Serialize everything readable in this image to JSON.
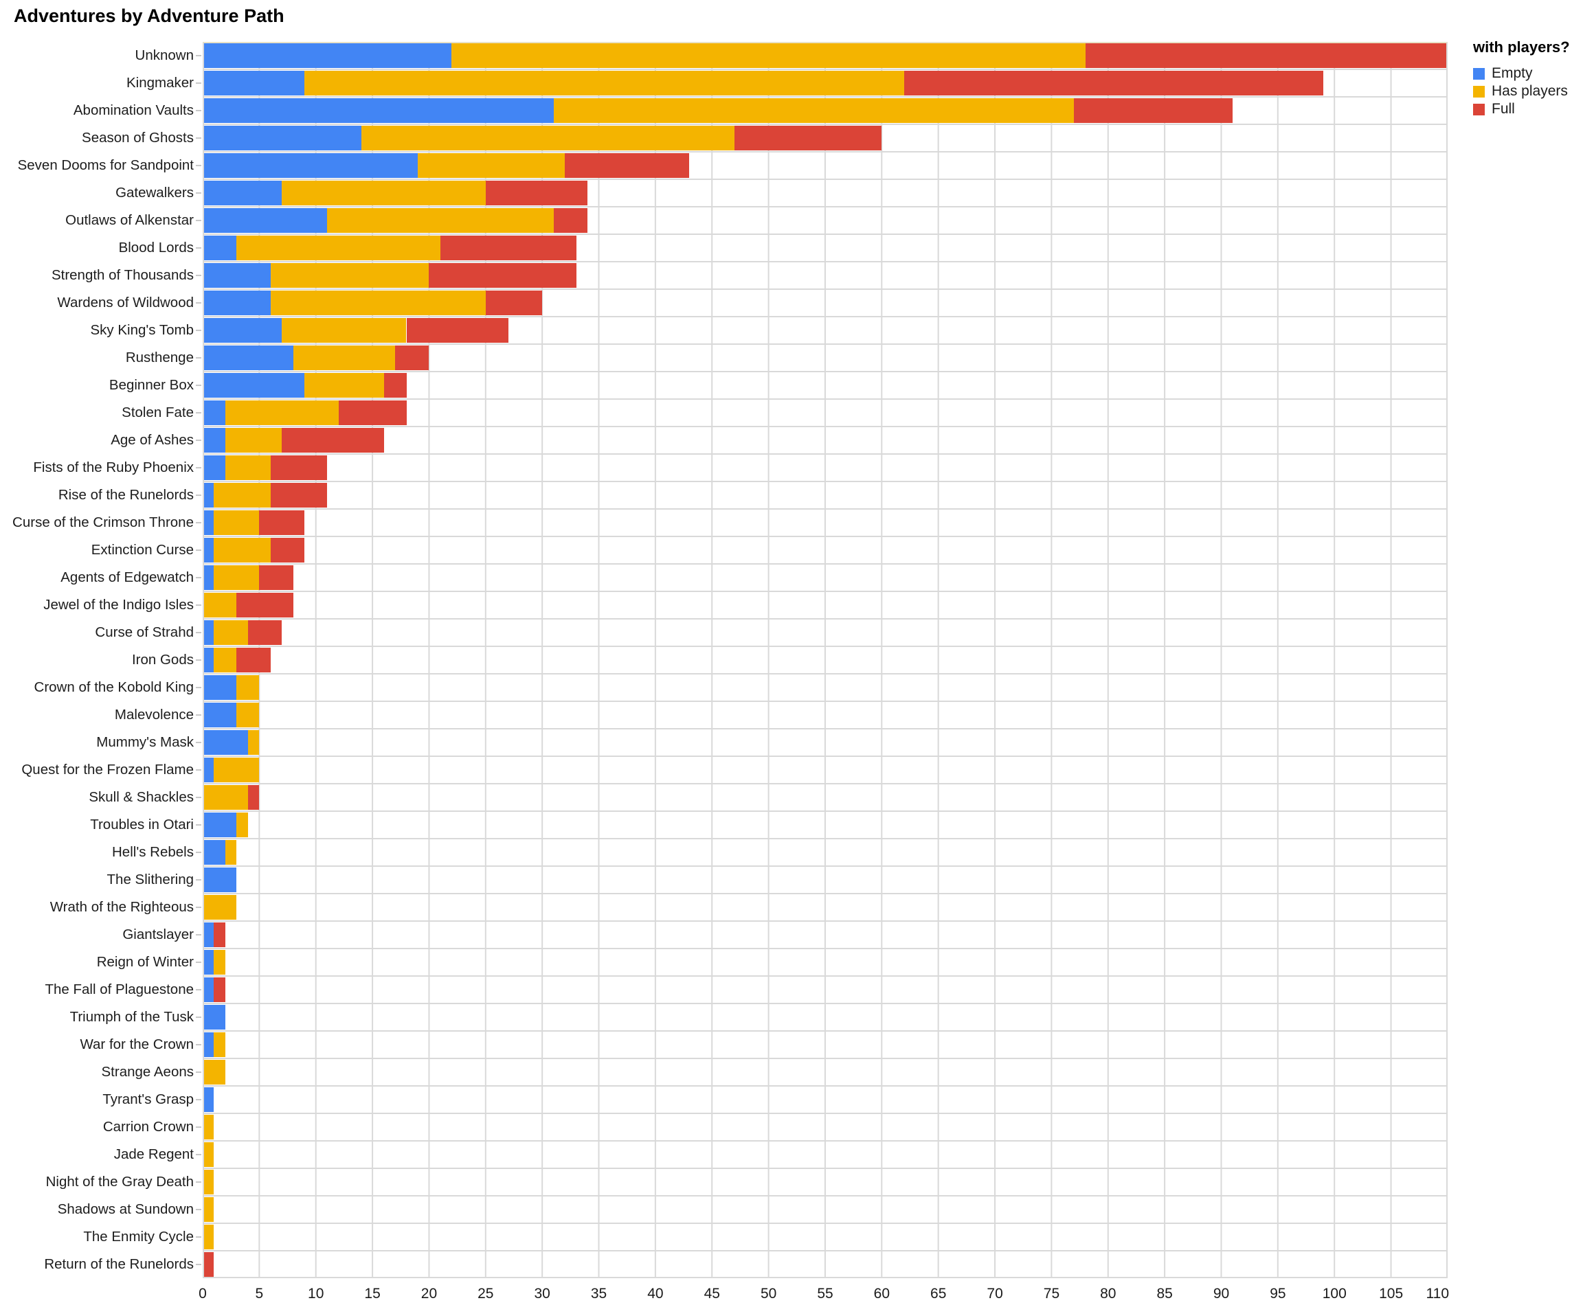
{
  "title": "Adventures by Adventure Path",
  "legend": {
    "title": "with players?",
    "items": [
      {
        "label": "Empty",
        "color": "#4285F4"
      },
      {
        "label": "Has players",
        "color": "#F4B400"
      },
      {
        "label": "Full",
        "color": "#DB4437"
      }
    ]
  },
  "colors": {
    "empty": "#4285F4",
    "has_players": "#F4B400",
    "full": "#DB4437",
    "grid": "#D9D9D9",
    "text": "#1D1D1D"
  },
  "chart_data": {
    "type": "bar",
    "orientation": "horizontal",
    "stacked": true,
    "title": "Adventures by Adventure Path",
    "xlabel": "",
    "ylabel": "",
    "xlim": [
      0,
      110
    ],
    "xticks": [
      0,
      5,
      10,
      15,
      20,
      25,
      30,
      35,
      40,
      45,
      50,
      55,
      60,
      65,
      70,
      75,
      80,
      85,
      90,
      95,
      100,
      105,
      110
    ],
    "grid": true,
    "legend_position": "top-right",
    "categories": [
      "Unknown",
      "Kingmaker",
      "Abomination Vaults",
      "Season of Ghosts",
      "Seven Dooms for Sandpoint",
      "Gatewalkers",
      "Outlaws of Alkenstar",
      "Blood Lords",
      "Strength of Thousands",
      "Wardens of Wildwood",
      "Sky King's Tomb",
      "Rusthenge",
      "Beginner Box",
      "Stolen Fate",
      "Age of Ashes",
      "Fists of the Ruby Phoenix",
      "Rise of the Runelords",
      "Curse of the Crimson Throne",
      "Extinction Curse",
      "Agents of Edgewatch",
      "Jewel of the Indigo Isles",
      "Curse of Strahd",
      "Iron Gods",
      "Crown of the Kobold King",
      "Malevolence",
      "Mummy's Mask",
      "Quest for the Frozen Flame",
      "Skull & Shackles",
      "Troubles in Otari",
      "Hell's Rebels",
      "The Slithering",
      "Wrath of the Righteous",
      "Giantslayer",
      "Reign of Winter",
      "The Fall of Plaguestone",
      "Triumph of the Tusk",
      "War for the Crown",
      "Strange Aeons",
      "Tyrant's Grasp",
      "Carrion Crown",
      "Jade Regent",
      "Night of the Gray Death",
      "Shadows at Sundown",
      "The Enmity Cycle",
      "Return of the Runelords"
    ],
    "series": [
      {
        "name": "Empty",
        "values": [
          22,
          9,
          31,
          14,
          19,
          7,
          11,
          3,
          6,
          6,
          7,
          8,
          9,
          2,
          2,
          2,
          1,
          1,
          1,
          1,
          0,
          1,
          1,
          3,
          3,
          4,
          1,
          0,
          3,
          2,
          3,
          0,
          1,
          1,
          1,
          2,
          1,
          0,
          1,
          0,
          0,
          0,
          0,
          0,
          0
        ]
      },
      {
        "name": "Has players",
        "values": [
          56,
          53,
          46,
          33,
          13,
          18,
          20,
          18,
          14,
          19,
          11,
          9,
          7,
          10,
          5,
          4,
          5,
          4,
          5,
          4,
          3,
          3,
          2,
          2,
          2,
          1,
          4,
          4,
          1,
          1,
          0,
          3,
          0,
          1,
          0,
          0,
          1,
          2,
          0,
          1,
          1,
          1,
          1,
          1,
          0
        ]
      },
      {
        "name": "Full",
        "values": [
          32,
          37,
          14,
          13,
          11,
          9,
          3,
          12,
          13,
          5,
          9,
          3,
          2,
          6,
          9,
          5,
          5,
          4,
          3,
          3,
          5,
          3,
          3,
          0,
          0,
          0,
          0,
          1,
          0,
          0,
          0,
          0,
          1,
          0,
          1,
          0,
          0,
          0,
          0,
          0,
          0,
          0,
          0,
          0,
          1
        ]
      }
    ]
  }
}
